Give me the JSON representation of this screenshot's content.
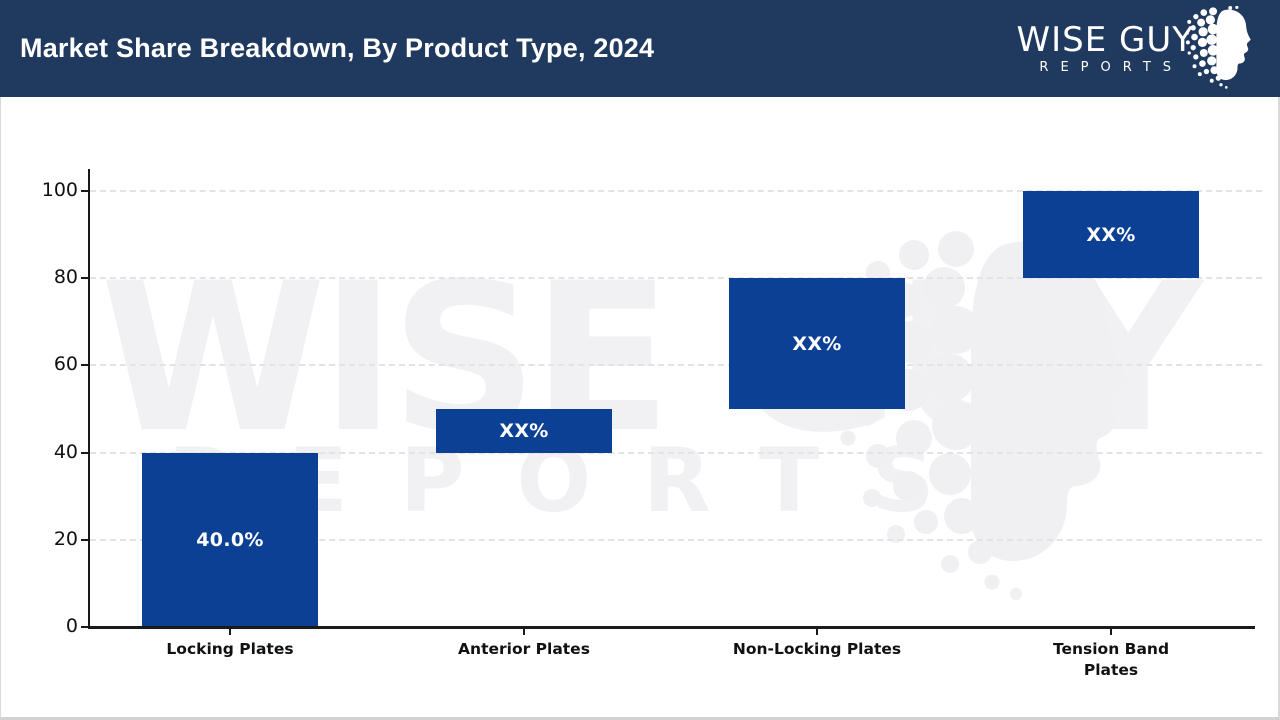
{
  "header": {
    "title": "Market Share Breakdown, By Product Type, 2024",
    "logo": {
      "line1": "WISE GUY",
      "line2": "REPORTS"
    }
  },
  "watermark": {
    "line1": "WISE GUY",
    "line2": "REPORTS"
  },
  "colors": {
    "header_bg": "#20395f",
    "bar": "#0b4094",
    "watermark": "#f1f1f3",
    "grid": "#e3e3e3",
    "axis": "#1a1a1a"
  },
  "chart_data": {
    "type": "bar",
    "variant": "waterfall",
    "title": "Market Share Breakdown, By Product Type, 2024",
    "categories": [
      "Locking Plates",
      "Anterior Plates",
      "Non-Locking Plates",
      "Tension Band Plates"
    ],
    "category_lines": [
      [
        "Locking Plates"
      ],
      [
        "Anterior Plates"
      ],
      [
        "Non-Locking Plates"
      ],
      [
        "Tension Band",
        "Plates"
      ]
    ],
    "values": [
      40,
      10,
      30,
      20
    ],
    "bars": [
      {
        "category": "Locking Plates",
        "start": 0,
        "end": 40,
        "label": "40.0%"
      },
      {
        "category": "Anterior Plates",
        "start": 40,
        "end": 50,
        "label": "XX%"
      },
      {
        "category": "Non-Locking Plates",
        "start": 50,
        "end": 80,
        "label": "XX%"
      },
      {
        "category": "Tension Band Plates",
        "start": 80,
        "end": 100,
        "label": "XX%"
      }
    ],
    "xlabel": "",
    "ylabel": "",
    "yticks": [
      0,
      20,
      40,
      60,
      80,
      100
    ],
    "ylim": [
      0,
      105
    ],
    "grid": {
      "axis": "y",
      "style": "dashed"
    },
    "legend": null,
    "bar_color": "#0b4094",
    "bar_label_color": "#ffffff"
  }
}
